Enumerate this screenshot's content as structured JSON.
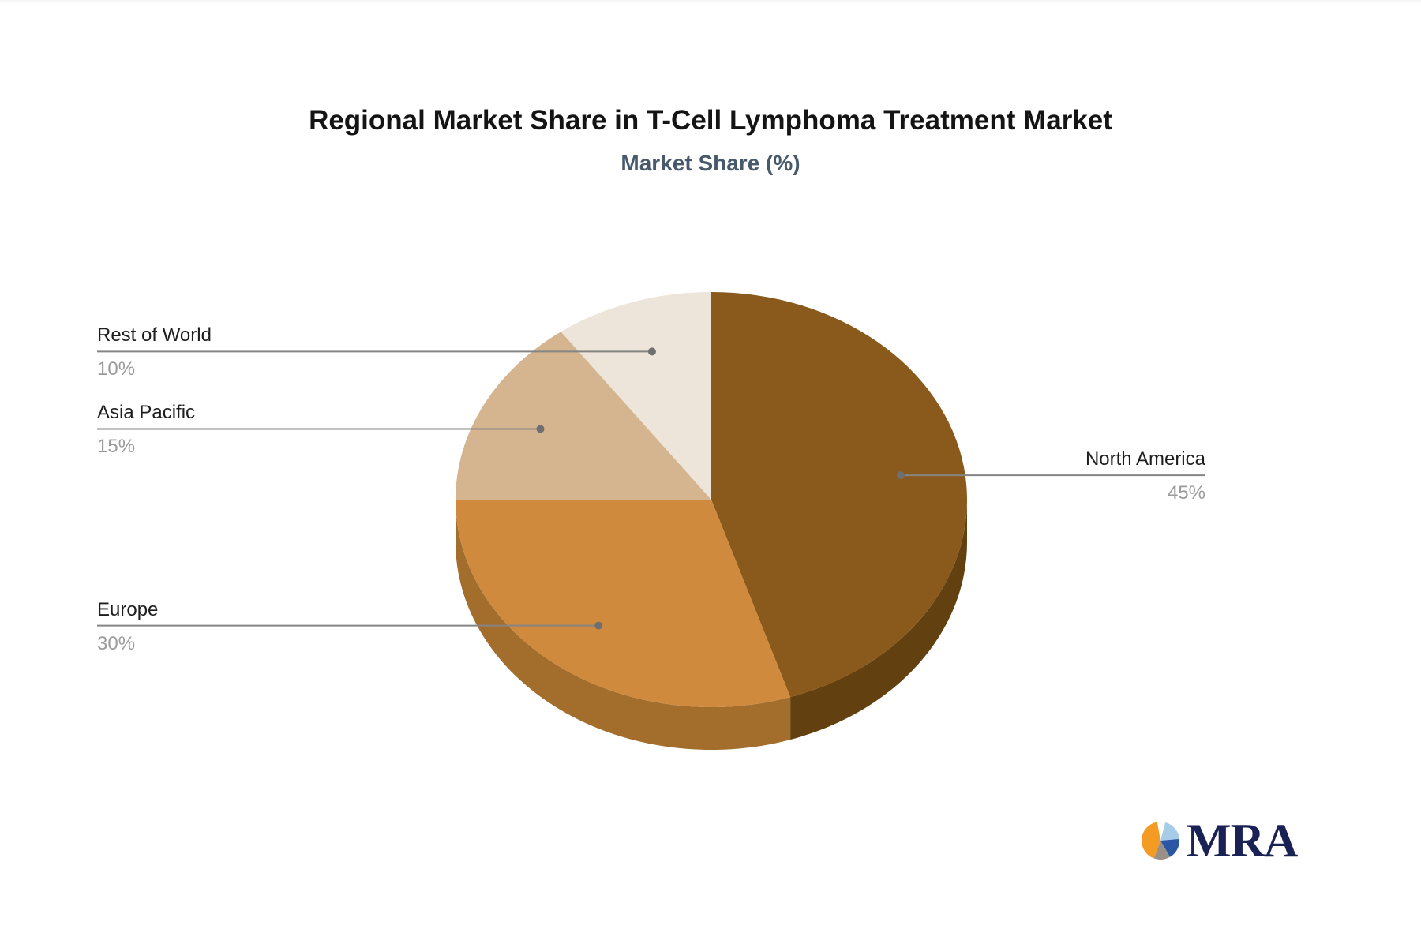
{
  "page": {
    "title": "Regional Market Share in T-Cell Lymphoma Treatment Market",
    "subtitle": "Market Share (%)"
  },
  "chart_data": {
    "type": "pie",
    "title": "Regional Market Share in T-Cell Lymphoma Treatment Market",
    "subtitle": "Market Share (%)",
    "unit": "%",
    "effect": "3d-depth",
    "start_angle_deg": 0,
    "direction": "clockwise",
    "legend_position": "none",
    "labels": [
      "North America",
      "Europe",
      "Asia Pacific",
      "Rest of World"
    ],
    "values": [
      45,
      30,
      15,
      10
    ],
    "value_labels": [
      "45%",
      "30%",
      "15%",
      "10%"
    ],
    "colors": [
      "#8A5A1D",
      "#CF8A3E",
      "#D5B590",
      "#EDE4DA"
    ],
    "side_colors": [
      "#63400F",
      "#A36D2C",
      "#AD8F6F",
      "#CEC2B4"
    ]
  },
  "labels_style": {
    "name_color": "#1e1e1e",
    "value_color": "#9b9b9b",
    "leader_line_color": "#858585"
  },
  "logo": {
    "text": "MRA",
    "text_color": "#1a2255",
    "icon_colors": [
      "#F49B23",
      "#A7CCE8",
      "#2B56A4",
      "#9A9088"
    ]
  }
}
